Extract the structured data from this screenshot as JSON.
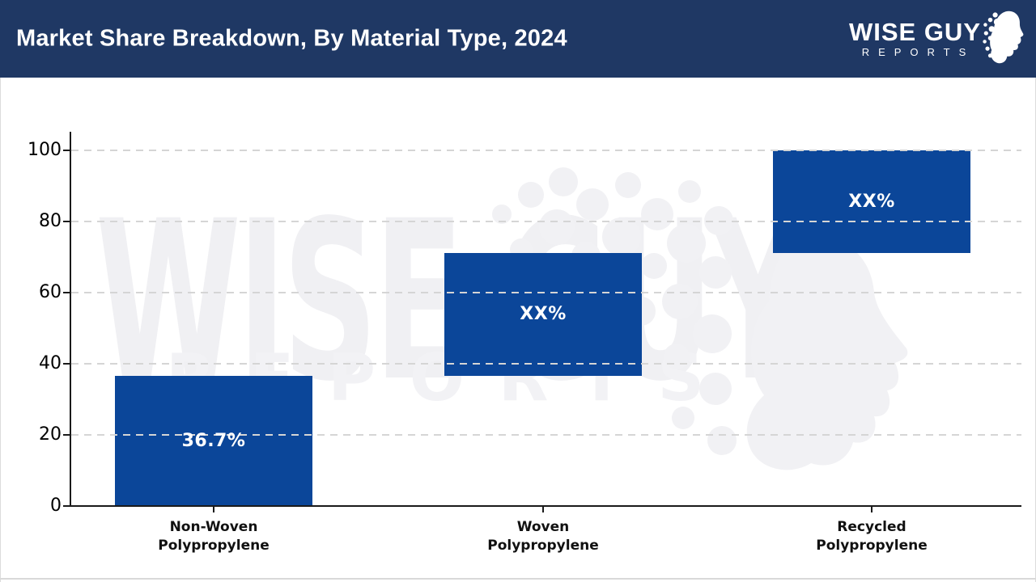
{
  "header": {
    "title": "Market Share Breakdown, By Material Type, 2024",
    "logo": {
      "wordmark": "WISE GUY",
      "subtitle": "REPORTS"
    }
  },
  "watermark": {
    "wordmark": "WISE GUY",
    "subtitle": "REPORTS"
  },
  "chart_data": {
    "type": "bar",
    "subtype": "floating-waterfall-segments",
    "title": "Market Share Breakdown, By Material Type, 2024",
    "categories": [
      "Non-Woven\nPolypropylene",
      "Woven\nPolypropylene",
      "Recycled\nPolypropylene"
    ],
    "segments": [
      {
        "category": "Non-Woven Polypropylene",
        "start": 0,
        "end": 36.7,
        "value": 36.7,
        "label": "36.7%"
      },
      {
        "category": "Woven Polypropylene",
        "start": 36.7,
        "end": 71.2,
        "value": 34.5,
        "label": "XX%"
      },
      {
        "category": "Recycled Polypropylene",
        "start": 71.2,
        "end": 100,
        "value": 28.8,
        "label": "XX%"
      }
    ],
    "yticks": [
      0,
      20,
      40,
      60,
      80,
      100
    ],
    "ylim": [
      0,
      100
    ],
    "xlabel": "",
    "ylabel": "",
    "legend": "none",
    "grid": "horizontal-dashed",
    "bar_color": "#0b4699",
    "bar_label_color": "#ffffff"
  },
  "colors": {
    "header_bg": "#1f3864",
    "header_text": "#ffffff",
    "bar": "#0b4699",
    "gridline": "#d5d5d5",
    "axis": "#1a1a1a",
    "watermark": "#f0f0f3",
    "page_bg": "#ffffff",
    "border": "#d9d9d9"
  }
}
